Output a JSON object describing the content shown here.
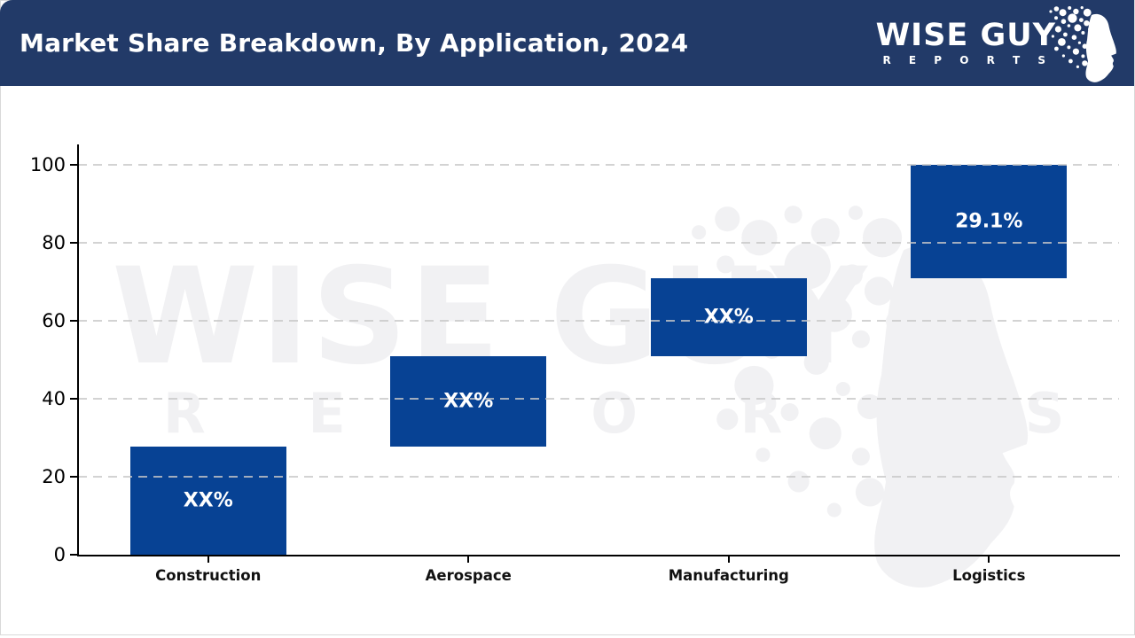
{
  "header": {
    "title": "Market Share Breakdown, By Application, 2024",
    "logo": {
      "line1": "WISE GUY",
      "line2": "R E P O R T S",
      "head_icon": "dotted-face-profile"
    }
  },
  "watermark": {
    "line1": "WISE GUY",
    "line2": "R E P O R T S",
    "head_icon": "dotted-face-profile"
  },
  "colors": {
    "header_bg": "#223a68",
    "bar": "#074294",
    "gridline": "#d2d2d2",
    "watermark": "#f1f1f3",
    "title_text": "#ffffff",
    "axis_text": "#000000"
  },
  "chart_data": {
    "type": "bar",
    "variant": "waterfall",
    "title": "Market Share Breakdown, By Application, 2024",
    "categories": [
      "Construction",
      "Aerospace",
      "Manufacturing",
      "Logistics"
    ],
    "series": [
      {
        "name": "Market Share (%)",
        "starts": [
          0,
          27.7,
          50.9,
          70.9
        ],
        "ends": [
          27.7,
          50.9,
          70.9,
          100
        ],
        "values": [
          27.7,
          23.2,
          20.0,
          29.1
        ],
        "bar_labels": [
          "XX%",
          "XX%",
          "XX%",
          "29.1%"
        ]
      }
    ],
    "xlabel": "",
    "ylabel": "",
    "ylim": [
      0,
      100
    ],
    "yticks": [
      0,
      20,
      40,
      60,
      80,
      100
    ],
    "grid": "horizontal-dashed",
    "legend": false
  }
}
